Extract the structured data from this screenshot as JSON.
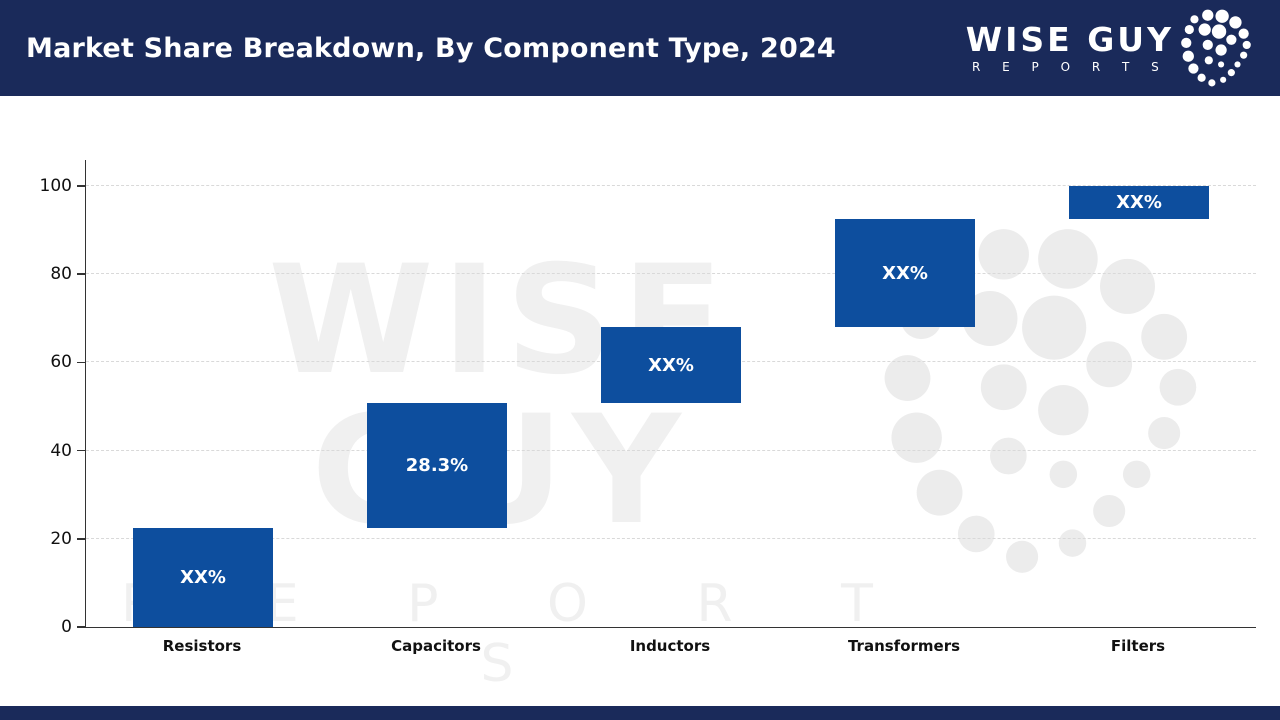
{
  "header": {
    "title": "Market Share Breakdown, By Component Type, 2024",
    "brand": {
      "line1": "WISE GUY",
      "line2": "R E P O R T S"
    }
  },
  "watermark": {
    "line1": "WISE GUY",
    "line2": "R E P O R T S"
  },
  "colors": {
    "header_bg": "#1a2a5a",
    "footer_bg": "#1a2a5a",
    "bar_fill": "#0d4e9e",
    "bar_label": "#ffffff",
    "gridline": "#d9d9d9"
  },
  "chart_data": {
    "type": "bar",
    "subtype": "waterfall",
    "title": "Market Share Breakdown, By Component Type, 2024",
    "categories": [
      "Resistors",
      "Capacitors",
      "Inductors",
      "Transformers",
      "Filters"
    ],
    "series": [
      {
        "name": "Market Share",
        "segments": [
          {
            "category": "Resistors",
            "start": 0,
            "end": 22.5,
            "label": "XX%"
          },
          {
            "category": "Capacitors",
            "start": 22.5,
            "end": 50.8,
            "label": "28.3%"
          },
          {
            "category": "Inductors",
            "start": 50.8,
            "end": 68.0,
            "label": "XX%"
          },
          {
            "category": "Transformers",
            "start": 68.0,
            "end": 92.5,
            "label": "XX%"
          },
          {
            "category": "Filters",
            "start": 92.5,
            "end": 100,
            "label": "XX%"
          }
        ]
      }
    ],
    "xlabel": "",
    "ylabel": "",
    "ylim": [
      0,
      100
    ],
    "yticks": [
      0,
      20,
      40,
      60,
      80,
      100
    ],
    "grid": "horizontal-dashed",
    "legend": "none"
  }
}
